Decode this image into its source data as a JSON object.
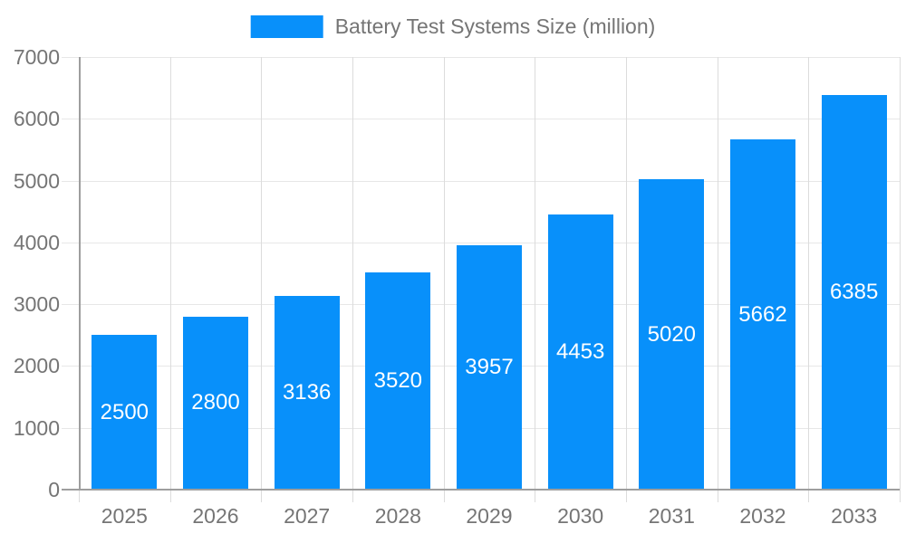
{
  "chart_data": {
    "type": "bar",
    "title": "Battery Test Systems Size (million)",
    "series": [
      {
        "name": "Battery Test Systems Size (million)",
        "values": [
          2500,
          2800,
          3136,
          3520,
          3957,
          4453,
          5020,
          5662,
          6385
        ]
      }
    ],
    "categories": [
      "2025",
      "2026",
      "2027",
      "2028",
      "2029",
      "2030",
      "2031",
      "2032",
      "2033"
    ],
    "values": [
      2500,
      2800,
      3136,
      3520,
      3957,
      4453,
      5020,
      5662,
      6385
    ],
    "xlabel": "",
    "ylabel": "",
    "ylim": [
      0,
      7000
    ],
    "yticks": [
      0,
      1000,
      2000,
      3000,
      4000,
      5000,
      6000,
      7000
    ],
    "grid": true,
    "legend_position": "top-center",
    "bar_labels_position": "inside-center",
    "colors": {
      "bar": "#0890fa",
      "bar_label_text": "#ffffff",
      "axis_text": "#757575",
      "axis_line": "#9e9e9e",
      "gridline_horizontal": "#e7e7e7",
      "gridline_vertical": "#dcdcdc",
      "background": "#ffffff"
    }
  }
}
